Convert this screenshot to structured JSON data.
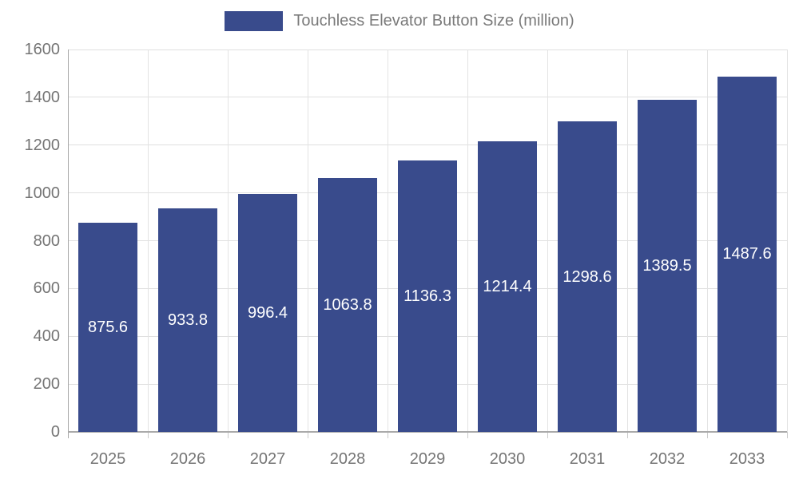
{
  "legend": {
    "label": "Touchless Elevator Button Size (million)"
  },
  "chart_data": {
    "type": "bar",
    "title": "Touchless Elevator Button Size (million)",
    "categories": [
      "2025",
      "2026",
      "2027",
      "2028",
      "2029",
      "2030",
      "2031",
      "2032",
      "2033"
    ],
    "values": [
      875.6,
      933.8,
      996.4,
      1063.8,
      1136.3,
      1214.4,
      1298.6,
      1389.5,
      1487.6
    ],
    "value_labels": [
      "875.6",
      "933.8",
      "996.4",
      "1063.8",
      "1136.3",
      "1214.4",
      "1298.6",
      "1389.5",
      "1487.6"
    ],
    "xlabel": "",
    "ylabel": "",
    "ylim": [
      0,
      1600
    ],
    "ytick_step": 200,
    "ytick_labels": [
      "0",
      "200",
      "400",
      "600",
      "800",
      "1000",
      "1200",
      "1400",
      "1600"
    ],
    "grid": true,
    "legend_position": "top-center",
    "colors": {
      "bar": "#394B8C",
      "bar_label_text": "#ffffff",
      "axis_text": "#757575",
      "legend_text": "#7a7a7a",
      "grid_h": "#e0e0e0",
      "grid_v": "#e3e3e3",
      "axis_line": "#aaaaaa",
      "tick": "#cccccc",
      "background": "#ffffff"
    }
  }
}
